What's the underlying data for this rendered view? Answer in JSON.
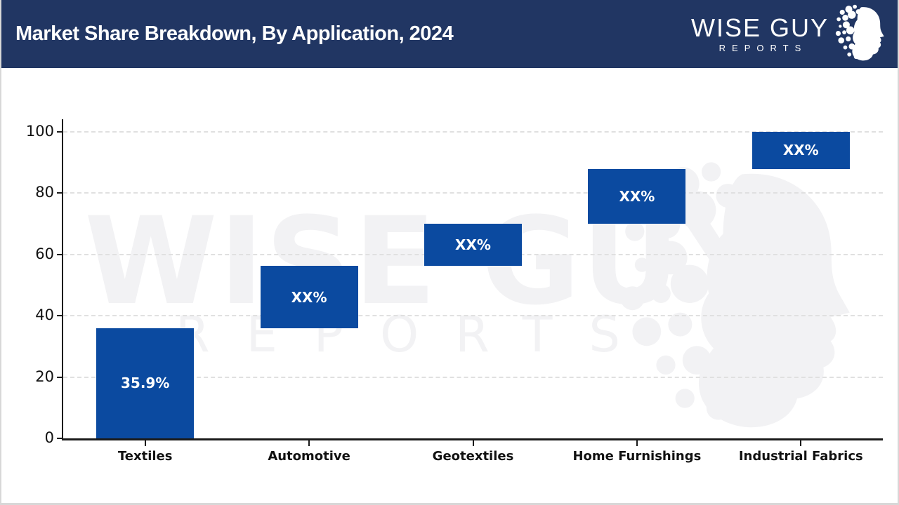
{
  "header": {
    "title": "Market Share Breakdown, By Application, 2024",
    "logo": {
      "line1": "WISE GUY",
      "line2": "REPORTS"
    }
  },
  "watermark": {
    "line1": "WISE GUY",
    "line2": "REPORTS"
  },
  "chart_data": {
    "type": "bar",
    "subtype": "waterfall",
    "title": "Market Share Breakdown, By Application, 2024",
    "xlabel": "",
    "ylabel": "",
    "categories": [
      "Textiles",
      "Automotive",
      "Geotextiles",
      "Home Furnishings",
      "Industrial Fabrics"
    ],
    "segments": [
      {
        "category": "Textiles",
        "start": 0,
        "end": 35.9,
        "label": "35.9%"
      },
      {
        "category": "Automotive",
        "start": 35.9,
        "end": 56.2,
        "label": "XX%"
      },
      {
        "category": "Geotextiles",
        "start": 56.2,
        "end": 69.9,
        "label": "XX%"
      },
      {
        "category": "Home Furnishings",
        "start": 69.9,
        "end": 87.8,
        "label": "XX%"
      },
      {
        "category": "Industrial Fabrics",
        "start": 87.8,
        "end": 100,
        "label": "XX%"
      }
    ],
    "yticks": [
      0,
      20,
      40,
      60,
      80,
      100
    ],
    "ylim": [
      0,
      104
    ],
    "grid": "horizontal-dashed",
    "legend": "none"
  },
  "colors": {
    "header_bg": "#213663",
    "bar": "#0b4aa0",
    "grid": "#e0e0e0",
    "axis": "#1a1a1a",
    "watermark": "#f2f2f4",
    "border": "#d8d8d8"
  }
}
